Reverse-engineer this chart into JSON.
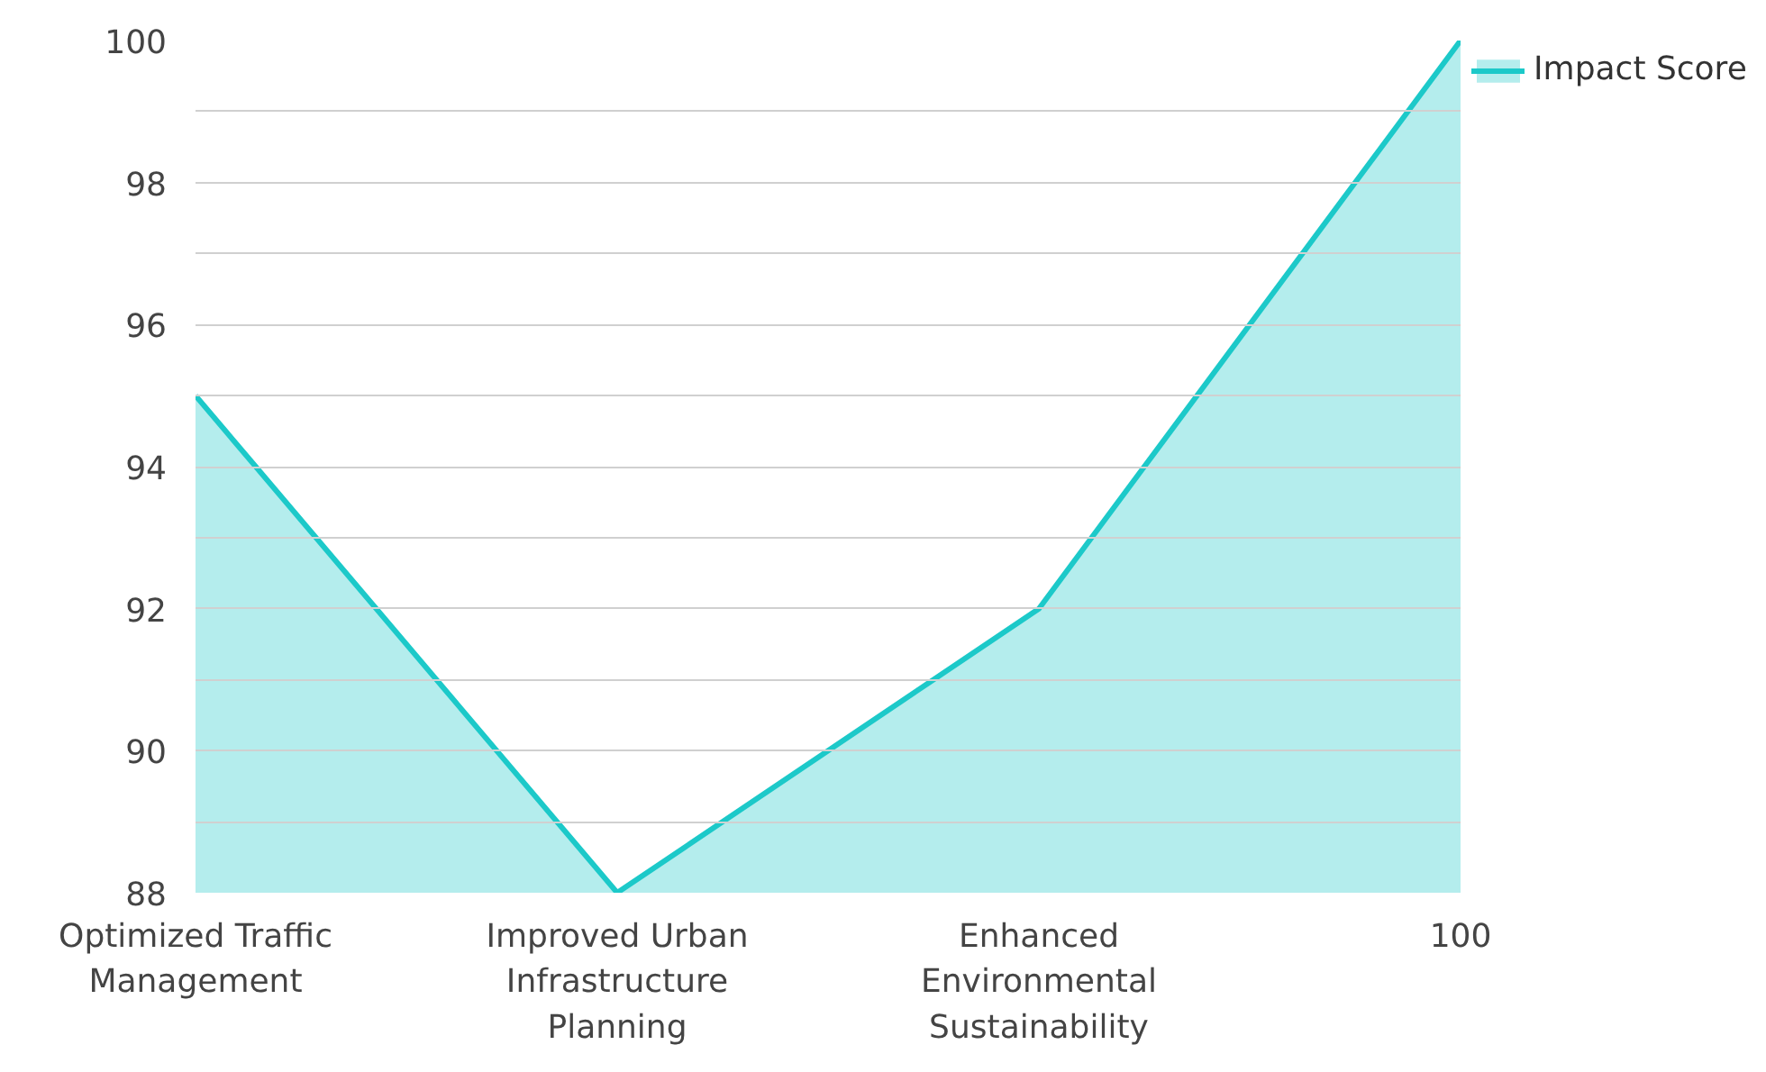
{
  "chart_data": {
    "type": "area",
    "categories": [
      "Optimized Traffic Management",
      "Improved Urban Infrastructure Planning",
      "Enhanced Environmental Sustainability",
      "100"
    ],
    "series": [
      {
        "name": "Impact Score",
        "color": "#1cc9c9",
        "values": [
          95,
          88,
          92,
          100
        ]
      }
    ],
    "ylim": [
      88,
      100
    ],
    "yticks": [
      88,
      {
        "value": 89,
        "label": null
      },
      90,
      {
        "value": 91,
        "label": null
      },
      92,
      {
        "value": 93,
        "label": null
      },
      94,
      {
        "value": 95,
        "label": null
      },
      96,
      {
        "value": 97,
        "label": null
      },
      98,
      {
        "value": 99,
        "label": null
      },
      100
    ],
    "grid": "y",
    "legend": "top right"
  }
}
